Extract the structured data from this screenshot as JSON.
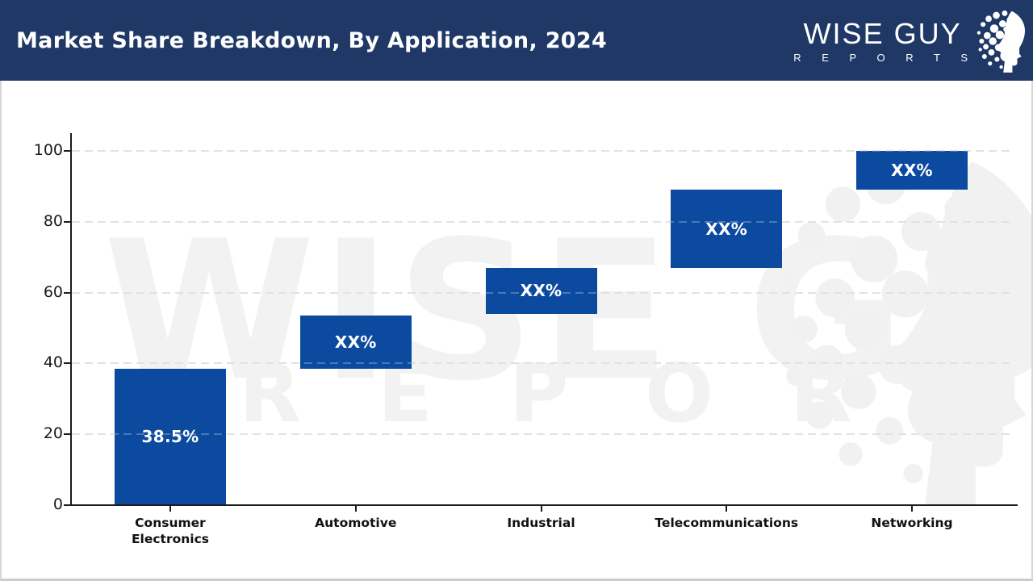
{
  "header": {
    "title": "Market Share Breakdown, By Application, 2024",
    "brand": {
      "name_top": "WISE GUY",
      "name_bottom": "R E P O R T S"
    }
  },
  "watermark": {
    "line1": "WISE GUY",
    "line2": "R E P O R T S"
  },
  "colors": {
    "header_bg": "#1f3866",
    "bar_blue": "#0c4aa0",
    "grid_gray": "#d9d9d9",
    "axis_black": "#1c1c1c",
    "watermark_gray": "#f2f2f2"
  },
  "chart_data": {
    "type": "bar",
    "variant": "waterfall",
    "title": "Market Share Breakdown, By Application, 2024",
    "xlabel": "",
    "ylabel": "",
    "ylim": [
      0,
      100
    ],
    "yticks": [
      0,
      20,
      40,
      60,
      80,
      100
    ],
    "grid": "horizontal dashed",
    "legend": "none",
    "categories": [
      "Consumer Electronics",
      "Automotive",
      "Industrial",
      "Telecommunications",
      "Networking"
    ],
    "bars": [
      {
        "category": "Consumer Electronics",
        "category_lines": [
          "Consumer",
          "Electronics"
        ],
        "start": 0,
        "end": 38.5,
        "value_label": "38.5%"
      },
      {
        "category": "Automotive",
        "category_lines": [
          "Automotive"
        ],
        "start": 38.5,
        "end": 53.5,
        "value_label": "XX%"
      },
      {
        "category": "Industrial",
        "category_lines": [
          "Industrial"
        ],
        "start": 54,
        "end": 67,
        "value_label": "XX%"
      },
      {
        "category": "Telecommunications",
        "category_lines": [
          "Telecommunications"
        ],
        "start": 67,
        "end": 89,
        "value_label": "XX%"
      },
      {
        "category": "Networking",
        "category_lines": [
          "Networking"
        ],
        "start": 89,
        "end": 100,
        "value_label": "XX%"
      }
    ]
  }
}
